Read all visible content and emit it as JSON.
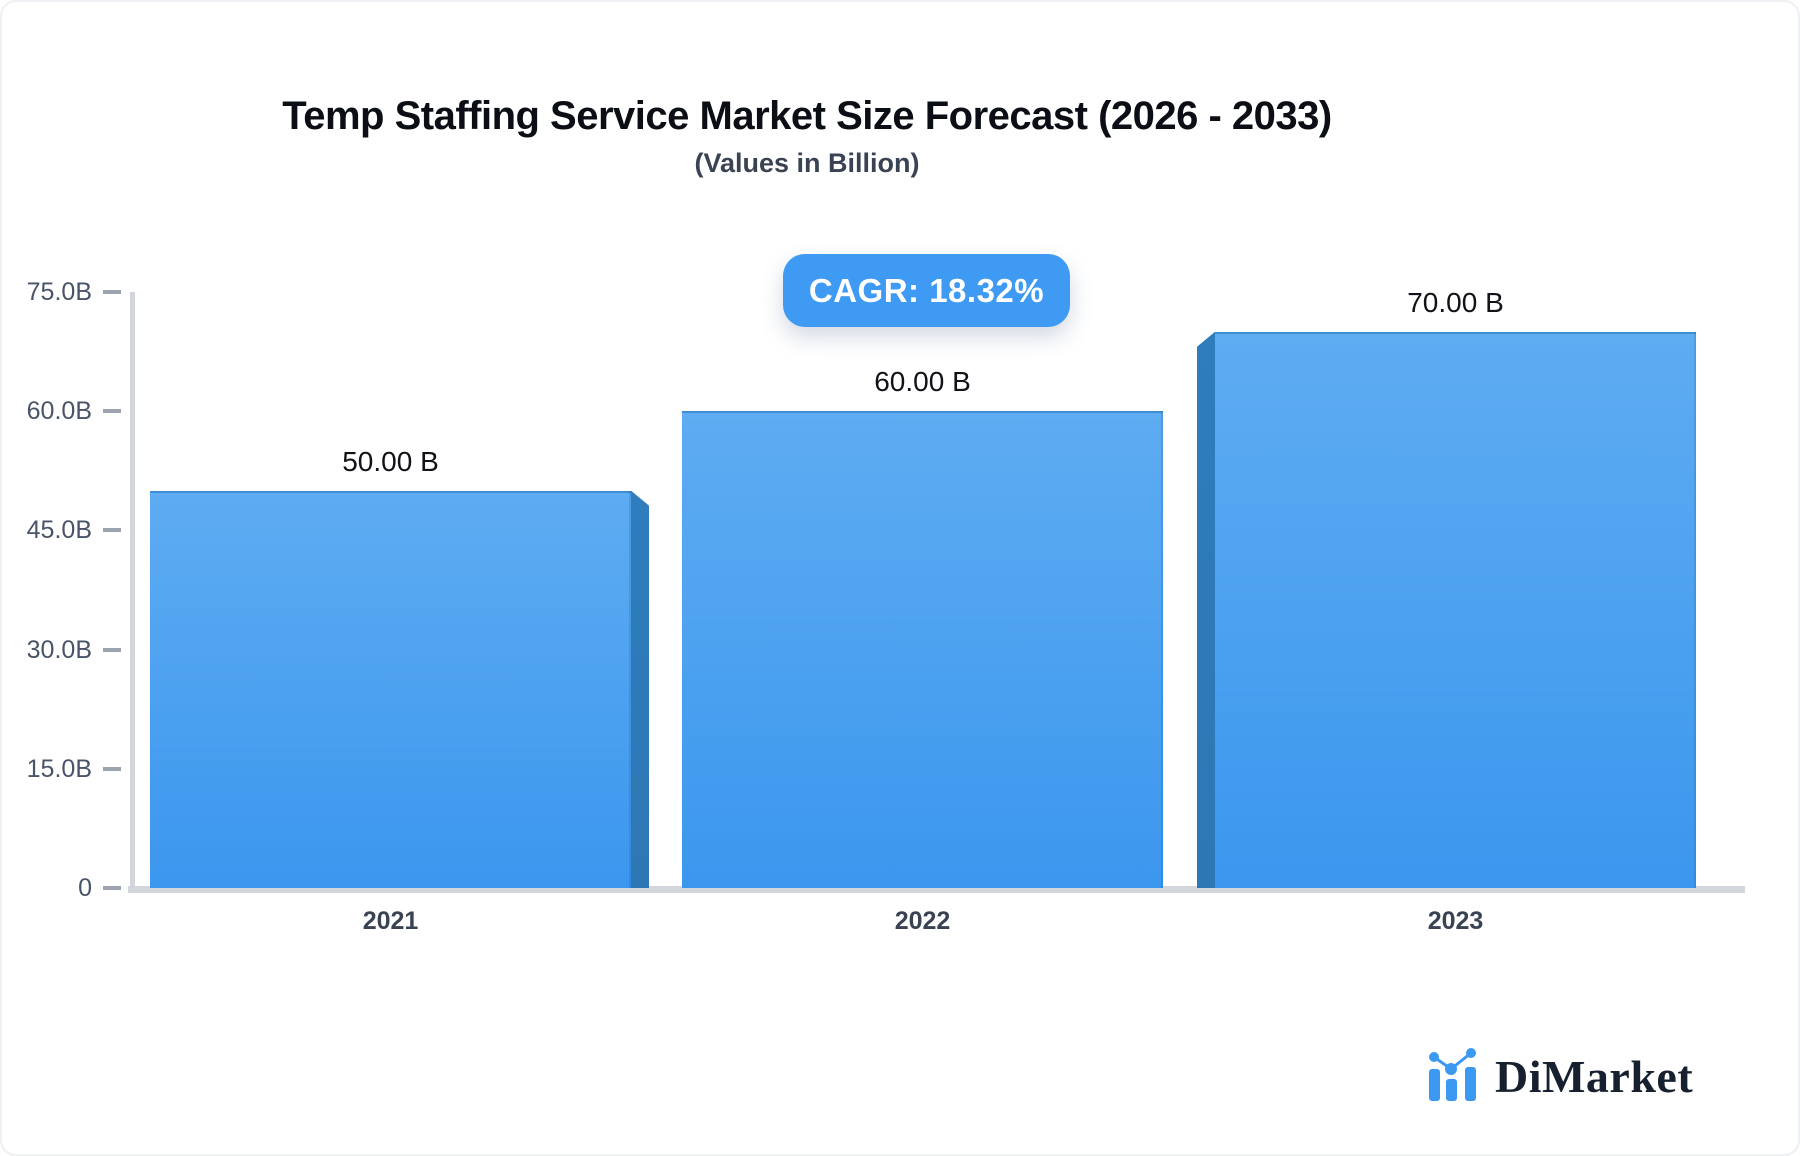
{
  "header": {
    "title": "Temp Staffing Service Market Size Forecast (2026 - 2033)",
    "subtitle": "(Values in Billion)",
    "cagr_badge_label": "CAGR: 18.32%"
  },
  "chart_data": {
    "type": "bar",
    "title": "Temp Staffing Service Market Size Forecast (2026 - 2033)",
    "subtitle": "(Values in Billion)",
    "categories": [
      "2021",
      "2022",
      "2023"
    ],
    "values": [
      50,
      60,
      70
    ],
    "value_labels": [
      "50.00 B",
      "60.00 B",
      "70.00 B"
    ],
    "unit": "Billion",
    "xlabel": "",
    "ylabel": "",
    "ylim": [
      0,
      75
    ],
    "yticks": [
      75,
      60,
      45,
      30,
      15,
      0
    ],
    "ytick_labels": [
      "75.0B",
      "60.0B",
      "45.0B",
      "30.0B",
      "15.0B",
      "0"
    ],
    "grid": false,
    "legend": "none",
    "annotations": [
      "CAGR: 18.32%"
    ]
  },
  "brand": {
    "name": "DiMarket",
    "icon": "dimarket-bar-chart-icon"
  },
  "colors": {
    "bar_top": "#5eacf2",
    "bar_bottom": "#3b97ee",
    "bar_side": "#2f7dbd",
    "badge_bg": "#3e9af3",
    "axis_gray": "#d2d5db",
    "brand_blue": "#3b99f2",
    "brand_navy": "#16202e"
  }
}
